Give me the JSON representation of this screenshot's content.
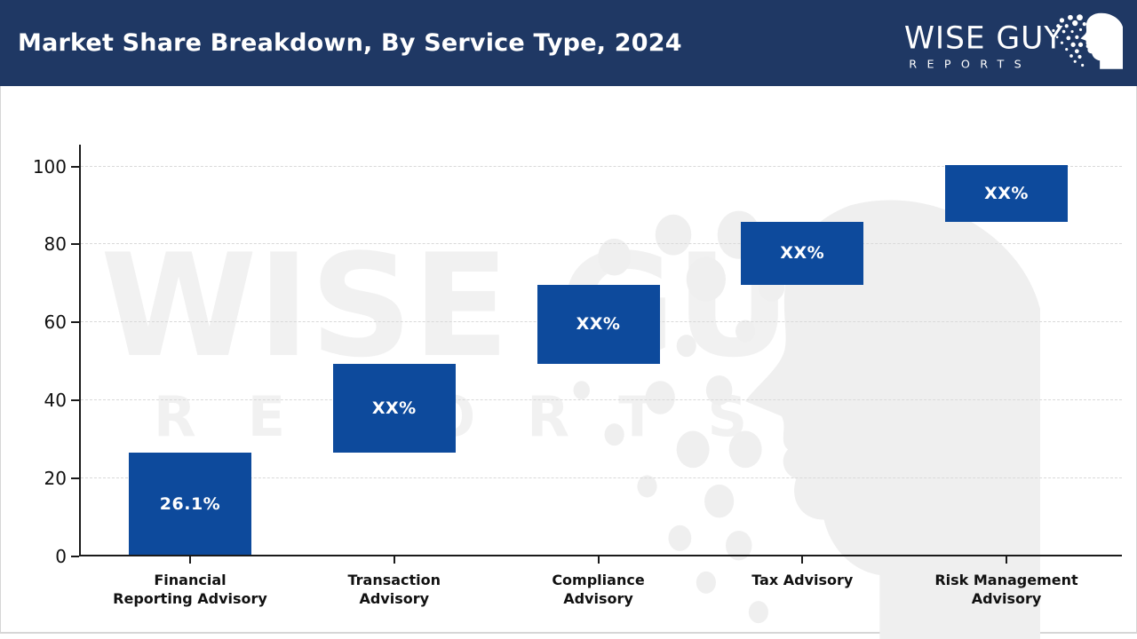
{
  "header": {
    "title": "Market Share Breakdown, By Service Type, 2024",
    "logo": {
      "line1": "WISE GUY",
      "line2": "REPORTS"
    }
  },
  "watermark": {
    "line1": "WISE GUY",
    "line2": "REPORTS"
  },
  "colors": {
    "header_bg": "#1f3864",
    "bar": "#0d4a9c",
    "axis": "#1a1a1a",
    "gridline": "#d9d9d9",
    "bar_label_text": "#ffffff",
    "watermark": "#f1f1f1",
    "watermark_face": "#efefef",
    "logo_text": "#ffffff"
  },
  "chart_data": {
    "type": "bar",
    "subtype": "waterfall",
    "title": "Market Share Breakdown, By Service Type, 2024",
    "xlabel": "",
    "ylabel": "",
    "ylim": [
      0,
      105.6
    ],
    "yticks": [
      0,
      20,
      40,
      60,
      80,
      100
    ],
    "grid": "horizontal-dashed",
    "legend": null,
    "categories": [
      "Financial Reporting Advisory",
      "Transaction Advisory",
      "Compliance Advisory",
      "Tax Advisory",
      "Risk Management Advisory"
    ],
    "category_label_lines": [
      [
        "Financial",
        "Reporting Advisory"
      ],
      [
        "Transaction",
        "Advisory"
      ],
      [
        "Compliance",
        "Advisory"
      ],
      [
        "Tax Advisory"
      ],
      [
        "Risk Management",
        "Advisory"
      ]
    ],
    "segments": [
      {
        "category": "Financial Reporting Advisory",
        "start": 0,
        "end": 26.1,
        "label": "26.1%"
      },
      {
        "category": "Transaction Advisory",
        "start": 26.1,
        "end": 48.9,
        "label": "XX%"
      },
      {
        "category": "Compliance Advisory",
        "start": 48.9,
        "end": 69.3,
        "label": "XX%"
      },
      {
        "category": "Tax Advisory",
        "start": 69.3,
        "end": 85.3,
        "label": "XX%"
      },
      {
        "category": "Risk Management Advisory",
        "start": 85.3,
        "end": 100,
        "label": "XX%"
      }
    ]
  }
}
